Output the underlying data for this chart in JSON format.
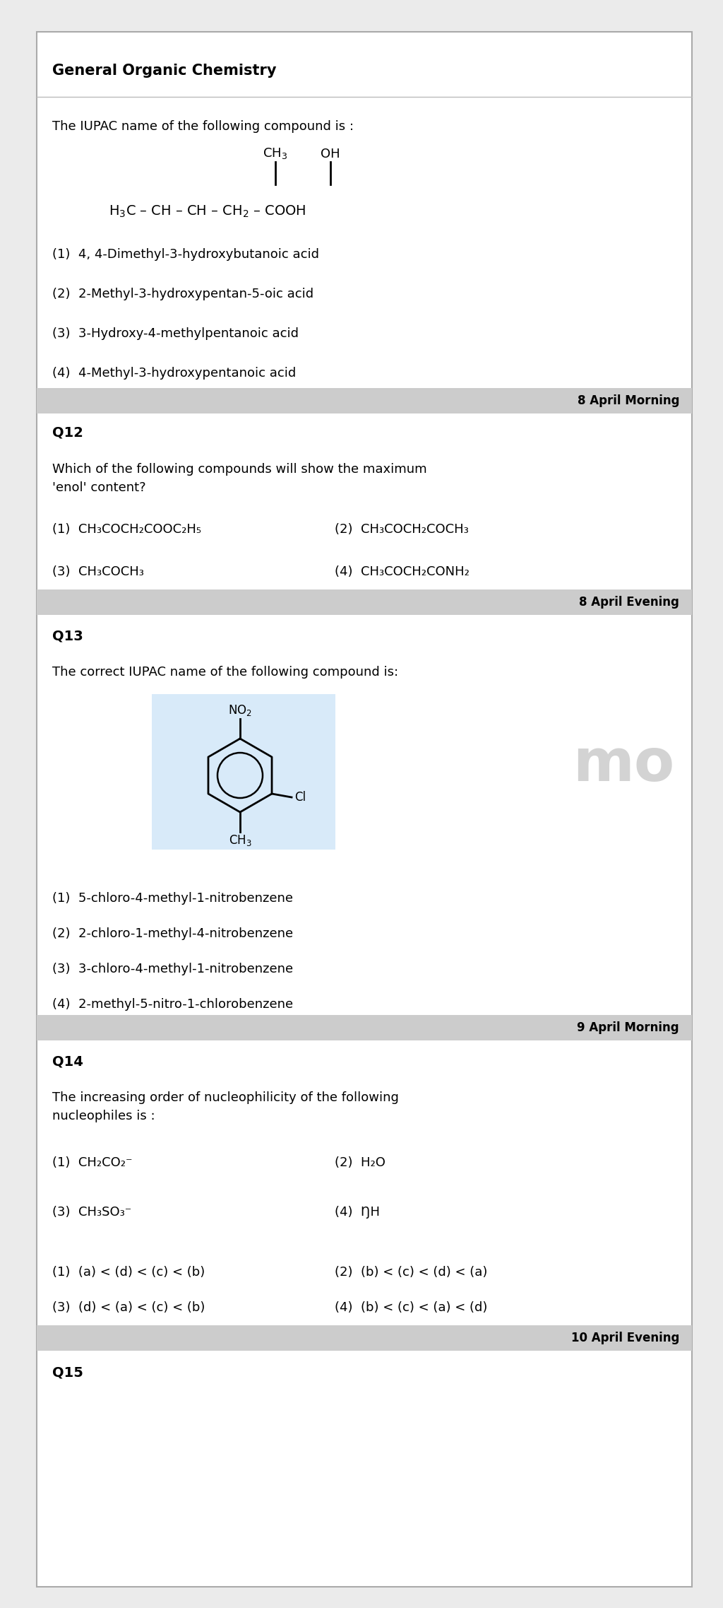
{
  "bg_color": "#ebebeb",
  "card_bg": "#ffffff",
  "card_border": "#aaaaaa",
  "gray_bar_color": "#cccccc",
  "title": "General Organic Chemistry",
  "q11_question": "The IUPAC name of the following compound is :",
  "q11_options": [
    "(1)  4, 4-Dimethyl-3-hydroxybutanoic acid",
    "(2)  2-Methyl-3-hydroxypentan-5-oic acid",
    "(3)  3-Hydroxy-4-methylpentanoic acid",
    "(4)  4-Methyl-3-hydroxypentanoic acid"
  ],
  "q11_date": "8 April Morning",
  "q12_label": "Q12",
  "q12_question": "Which of the following compounds will show the maximum\n'enol' content?",
  "q12_options_col1": [
    "(1)  CH₃COCH₂COOC₂H₅",
    "(3)  CH₃COCH₃"
  ],
  "q12_options_col2": [
    "(2)  CH₃COCH₂COCH₃",
    "(4)  CH₃COCH₂CONH₂"
  ],
  "q12_date": "8 April Evening",
  "q13_label": "Q13",
  "q13_question": "The correct IUPAC name of the following compound is:",
  "q13_options": [
    "(1)  5-chloro-4-methyl-1-nitrobenzene",
    "(2)  2-chloro-1-methyl-4-nitrobenzene",
    "(3)  3-chloro-4-methyl-1-nitrobenzene",
    "(4)  2-methyl-5-nitro-1-chlorobenzene"
  ],
  "q13_date": "9 April Morning",
  "q14_label": "Q14",
  "q14_question": "The increasing order of nucleophilicity of the following\nnucleophiles is :",
  "q14_options_col1": [
    "(1)  CH₂CO₂⁻",
    "(3)  CH₃SO₃⁻"
  ],
  "q14_options_col2": [
    "(2)  H₂O",
    "(4)  ŊH"
  ],
  "q14_answers_col1": [
    "(1)  (a) < (d) < (c) < (b)",
    "(3)  (d) < (a) < (c) < (b)"
  ],
  "q14_answers_col2": [
    "(2)  (b) < (c) < (d) < (a)",
    "(4)  (b) < (c) < (a) < (d)"
  ],
  "q14_date": "10 April Evening",
  "q15_label": "Q15",
  "font_size_title": 15,
  "font_size_body": 13,
  "font_size_label": 14,
  "font_size_date": 12
}
